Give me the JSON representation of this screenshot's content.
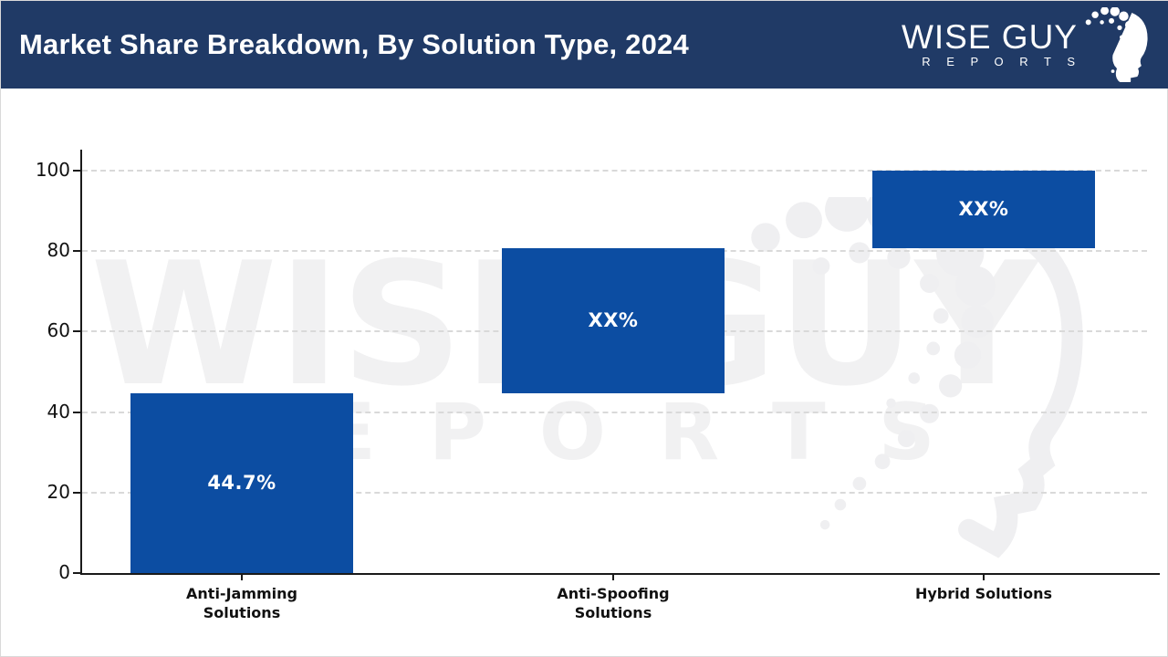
{
  "header": {
    "title": "Market Share Breakdown, By Solution Type, 2024",
    "logo": {
      "line1": "WISE GUY",
      "line2": "R E P O R T S"
    }
  },
  "watermark": {
    "line1": "WISE GUY",
    "line2": "R E P O R T S"
  },
  "chart_data": {
    "type": "bar",
    "variant": "waterfall",
    "title": "Market Share Breakdown, By Solution Type, 2024",
    "categories": [
      "Anti-Jamming Solutions",
      "Anti-Spoofing Solutions",
      "Hybrid Solutions"
    ],
    "category_lines": [
      [
        "Anti-Jamming",
        "Solutions"
      ],
      [
        "Anti-Spoofing",
        "Solutions"
      ],
      [
        "Hybrid Solutions"
      ]
    ],
    "segments": [
      {
        "category": "Anti-Jamming Solutions",
        "start": 0,
        "end": 44.7,
        "label": "44.7%"
      },
      {
        "category": "Anti-Spoofing Solutions",
        "start": 44.7,
        "end": 80.8,
        "label": "XX%"
      },
      {
        "category": "Hybrid Solutions",
        "start": 80.8,
        "end": 100,
        "label": "XX%"
      }
    ],
    "xlabel": "",
    "ylabel": "",
    "ylim": [
      0,
      100
    ],
    "yticks": [
      0,
      20,
      40,
      60,
      80,
      100
    ],
    "grid": "horizontal-dashed",
    "legend": "none",
    "colors": {
      "bar": "#0c4da2",
      "bar_label": "#ffffff",
      "header_bg": "#203a66",
      "axis": "#1a1a1a",
      "grid": "#d9d9d9",
      "tick_label": "#111111",
      "watermark": "#f1f1f2"
    }
  }
}
